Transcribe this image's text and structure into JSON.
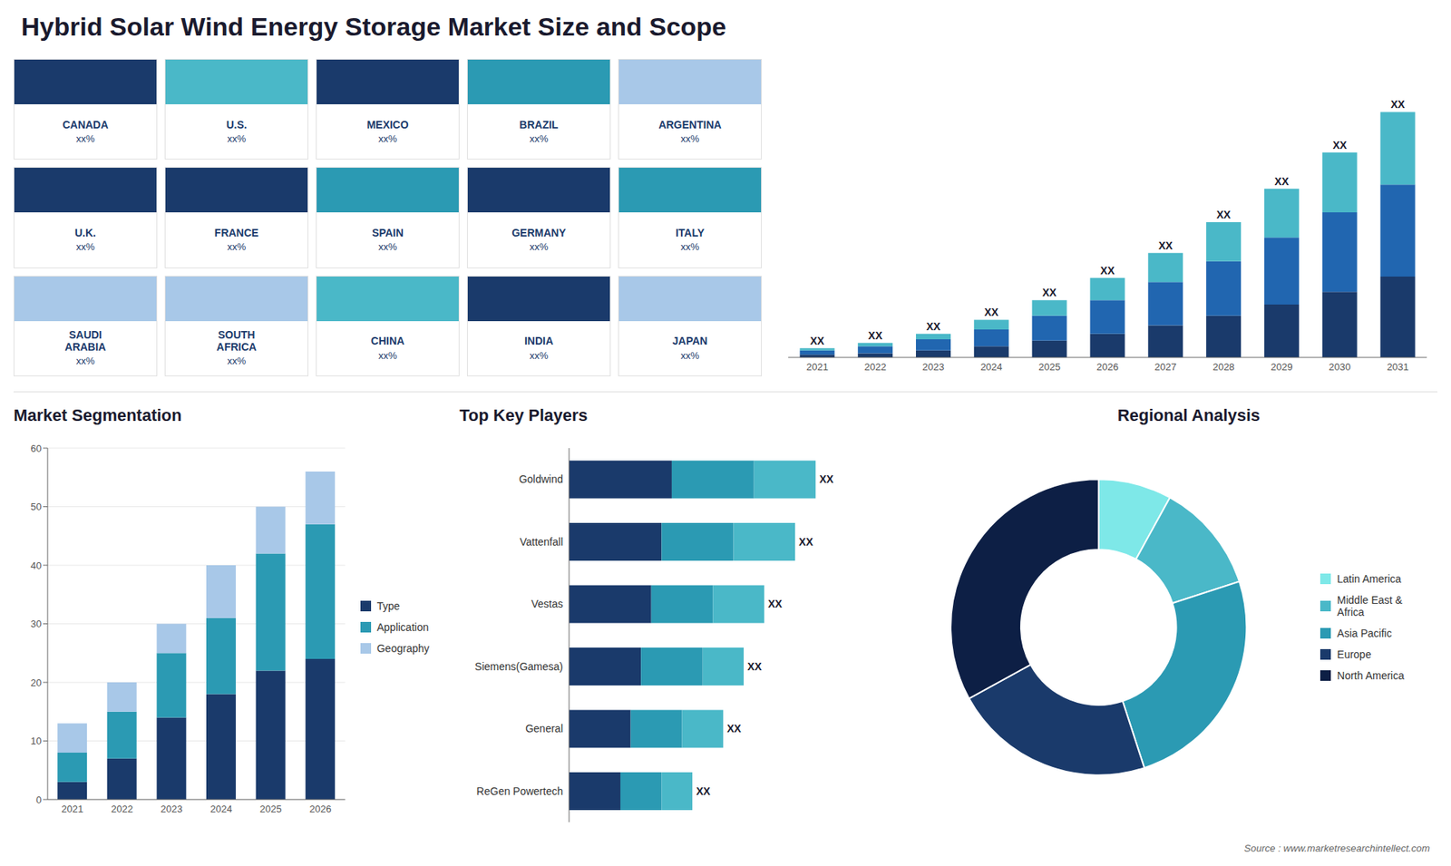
{
  "title": "Hybrid Solar Wind Energy Storage Market Size and Scope",
  "annotations": [
    "Source : www.marketresearchintellect.com"
  ],
  "chart_data": [
    {
      "type": "map",
      "categories": [
        "CANADA",
        "U.S.",
        "MEXICO",
        "BRAZIL",
        "ARGENTINA",
        "U.K.",
        "FRANCE",
        "SPAIN",
        "GERMANY",
        "ITALY",
        "SAUDI\nARABIA",
        "SOUTH\nAFRICA",
        "CHINA",
        "INDIA",
        "JAPAN"
      ],
      "colors": [
        "#1a3a6b",
        "#4ab8c8",
        "#1a3a6b",
        "#2b9ab3",
        "#a8c8e8",
        "#1a3a6b",
        "#1a3a6b",
        "#2b9ab3",
        "#1a3a6b",
        "#2b9ab3",
        "#a8c8e8",
        "#a8c8e8",
        "#4ab8c8",
        "#1a3a6b",
        "#a8c8e8"
      ],
      "annotations": [
        "xx%",
        "xx%",
        "xx%",
        "xx%",
        "xx%",
        "xx%",
        "xx%",
        "xx%",
        "xx%",
        "xx%",
        "xx%",
        "xx%",
        "xx%",
        "xx%",
        "xx%"
      ]
    },
    {
      "type": "bar",
      "stacked": true,
      "categories": [
        2021,
        2022,
        2023,
        2024,
        2025,
        2026,
        2027,
        2028,
        2029,
        2030,
        2031
      ],
      "series": [
        {
          "color": "#1a3a6b",
          "values": [
            1.0,
            1.5,
            2.5,
            4.0,
            6.0,
            8.5,
            11.5,
            15.0,
            19.0,
            23.5,
            29.0
          ]
        },
        {
          "color": "#2166b0",
          "values": [
            1.5,
            2.5,
            4.0,
            6.0,
            9.0,
            12.0,
            15.5,
            19.5,
            24.0,
            28.5,
            33.0
          ]
        },
        {
          "color": "#4ab8c8",
          "values": [
            0.8,
            1.2,
            2.0,
            3.5,
            5.5,
            8.0,
            10.5,
            14.0,
            17.5,
            21.5,
            26.0
          ],
          "value_labels": [
            "XX",
            "XX",
            "XX",
            "XX",
            "XX",
            "XX",
            "XX",
            "XX",
            "XX",
            "XX",
            "XX"
          ]
        }
      ],
      "ylim": [
        0,
        100
      ],
      "tick_labels": "x",
      "grid": false
    },
    {
      "type": "bar",
      "title": "Market Segmentation",
      "stacked": true,
      "categories": [
        2021,
        2022,
        2023,
        2024,
        2025,
        2026
      ],
      "series": [
        {
          "name": "Type",
          "color": "#1a3a6b",
          "values": [
            3,
            7,
            14,
            18,
            22,
            24
          ]
        },
        {
          "name": "Application",
          "color": "#2b9ab3",
          "values": [
            5,
            8,
            11,
            13,
            20,
            23
          ]
        },
        {
          "name": "Geography",
          "color": "#a8c8e8",
          "values": [
            5,
            5,
            5,
            9,
            8,
            9
          ]
        }
      ],
      "ylim": [
        0,
        60
      ],
      "yticks": [
        0,
        10,
        20,
        30,
        40,
        50,
        60
      ],
      "grid": true,
      "legend": "right"
    },
    {
      "type": "bar",
      "orientation": "horizontal",
      "title": "Top Key Players",
      "stacked": true,
      "categories": [
        "Goldwind",
        "Vattenfall",
        "Vestas",
        "Siemens(Gamesa)",
        "General",
        "ReGen Powertech"
      ],
      "series": [
        {
          "color": "#1a3a6b",
          "values": [
            5,
            4.5,
            4,
            3.5,
            3,
            2.5
          ]
        },
        {
          "color": "#2b9ab3",
          "values": [
            4,
            3.5,
            3,
            3,
            2.5,
            2
          ]
        },
        {
          "color": "#4ab8c8",
          "values": [
            3,
            3,
            2.5,
            2,
            2,
            1.5
          ],
          "value_labels": [
            "XX",
            "XX",
            "XX",
            "XX",
            "XX",
            "XX"
          ]
        }
      ],
      "xlim": [
        0,
        16
      ],
      "tick_labels": "y",
      "grid": false
    },
    {
      "type": "pie",
      "title": "Regional Analysis",
      "categories": [
        "Latin America",
        "Middle East &\nAfrica",
        "Asia Pacific",
        "Europe",
        "North America"
      ],
      "values": [
        8,
        12,
        25,
        22,
        33
      ],
      "colors": [
        "#7ee8e8",
        "#4ab8c8",
        "#2b9ab3",
        "#1a3a6b",
        "#0d1f45"
      ],
      "legend": "right"
    }
  ]
}
